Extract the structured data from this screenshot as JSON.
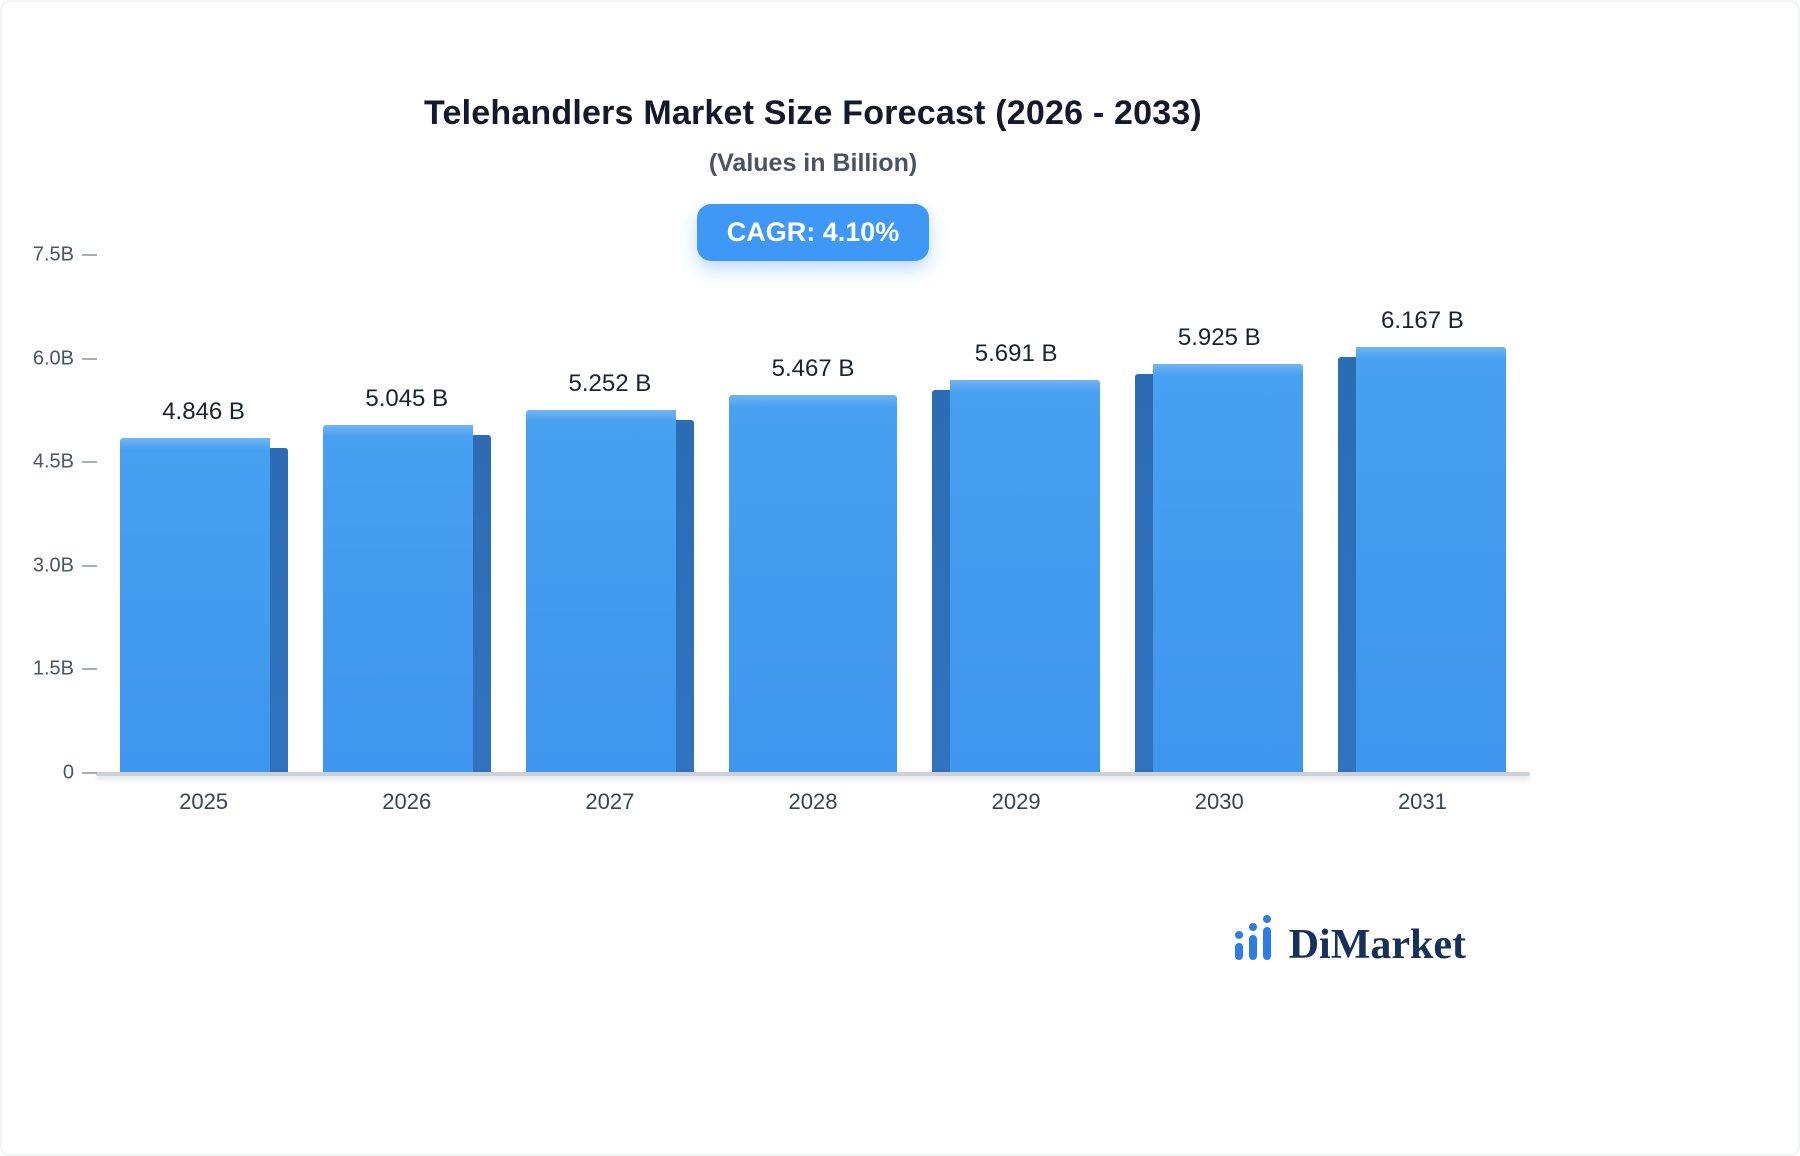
{
  "header": {
    "title": "Telehandlers Market Size Forecast (2026 - 2033)",
    "subtitle": "(Values in Billion)",
    "cagr_badge": "CAGR: 4.10%"
  },
  "logo": {
    "text": "DiMarket",
    "icon": "bar-chart-icon"
  },
  "colors": {
    "bar_main": "#459ff0",
    "bar_side": "#2d6fb7",
    "badge_background": "#3f97f6",
    "badge_text": "#ffffff",
    "axis_line": "#ccd1d8",
    "title_text": "#15192b",
    "logo_text": "#16315a"
  },
  "chart_data": {
    "type": "bar",
    "title": "Telehandlers Market Size Forecast (2026 - 2033)",
    "subtitle": "(Values in Billion)",
    "categories": [
      "2025",
      "2026",
      "2027",
      "2028",
      "2029",
      "2030",
      "2031"
    ],
    "values": [
      4.846,
      5.045,
      5.252,
      5.467,
      5.691,
      5.925,
      6.167
    ],
    "labels": [
      "4.846 B",
      "5.045 B",
      "5.252 B",
      "5.467 B",
      "5.691 B",
      "5.925 B",
      "6.167 B"
    ],
    "xlabel": "",
    "ylabel": "",
    "ylim": [
      0,
      7.5
    ],
    "yticks": [
      {
        "value": 0,
        "label": "0"
      },
      {
        "value": 1.5,
        "label": "1.5B"
      },
      {
        "value": 3.0,
        "label": "3.0B"
      },
      {
        "value": 4.5,
        "label": "4.5B"
      },
      {
        "value": 6.0,
        "label": "6.0B"
      },
      {
        "value": 7.5,
        "label": "7.5B"
      }
    ],
    "grid": false,
    "legend": false,
    "annotation": "CAGR: 4.10%"
  }
}
